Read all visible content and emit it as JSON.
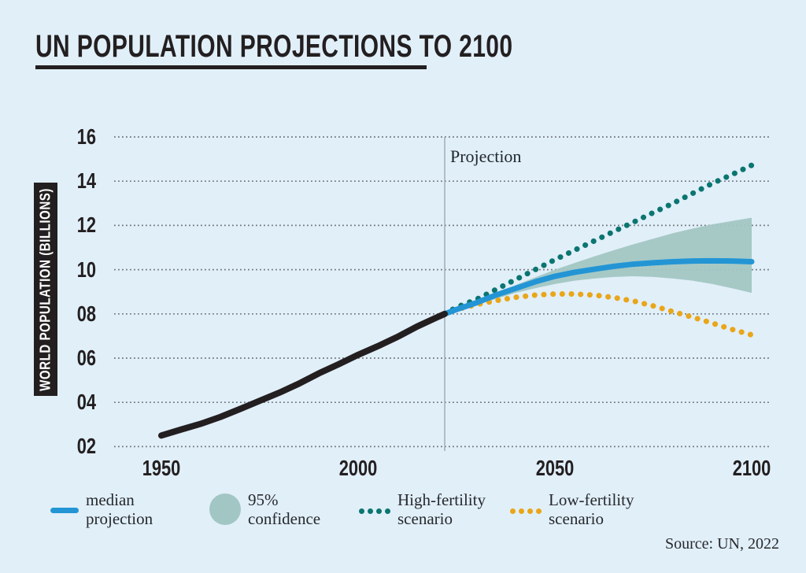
{
  "colors": {
    "background": "#e1eff9",
    "ink": "#231f20",
    "grid": "#54575c",
    "projection_line": "#9fadb6",
    "median_blue": "#2395d5",
    "confidence_band": "#a2c6c3",
    "high_fertility_teal": "#0b7570",
    "low_fertility_orange": "#e9a619"
  },
  "legend": {
    "items": [
      {
        "label": "median\nprojection",
        "swatch": "line",
        "color": "#2395d5"
      },
      {
        "label": "95%\nconfidence",
        "swatch": "circle",
        "color": "#a2c6c3"
      },
      {
        "label": "High-fertility\nscenario",
        "swatch": "dots",
        "color": "#0b7570"
      },
      {
        "label": "Low-fertility\nscenario",
        "swatch": "dots",
        "color": "#e9a619"
      }
    ]
  },
  "source": "Source: UN, 2022",
  "chart_data": {
    "type": "line",
    "title": "UN POPULATION PROJECTIONS TO 2100",
    "xlabel": "",
    "ylabel": "WORLD POPULATION (BILLIONS)",
    "xlim": [
      1950,
      2100
    ],
    "ylim": [
      2,
      16
    ],
    "grid": "horizontal-dotted",
    "legend_position": "bottom",
    "annotation": "Projection",
    "projection_start_year": 2022,
    "x_ticks": [
      "1950",
      "2000",
      "2050",
      "2100"
    ],
    "x_tick_years": [
      1950,
      2000,
      2050,
      2100
    ],
    "y_tick_labels": [
      "16",
      "14",
      "12",
      "10",
      "08",
      "06",
      "04",
      "02"
    ],
    "y_tick_values": [
      16,
      14,
      12,
      10,
      8,
      6,
      4,
      2
    ],
    "series": [
      {
        "name": "historical population",
        "style": "solid",
        "color": "#231f20",
        "width": 8,
        "years": [
          1950,
          1955,
          1960,
          1965,
          1970,
          1975,
          1980,
          1985,
          1990,
          1995,
          2000,
          2005,
          2010,
          2015,
          2020,
          2022
        ],
        "values": [
          2.5,
          2.77,
          3.03,
          3.34,
          3.7,
          4.07,
          4.44,
          4.85,
          5.31,
          5.72,
          6.15,
          6.54,
          6.96,
          7.43,
          7.84,
          8.0
        ]
      },
      {
        "name": "median projection",
        "style": "solid",
        "color": "#2395d5",
        "width": 7,
        "years": [
          2022,
          2025,
          2030,
          2035,
          2040,
          2045,
          2050,
          2055,
          2060,
          2065,
          2070,
          2075,
          2080,
          2085,
          2090,
          2095,
          2100
        ],
        "values": [
          8.0,
          8.2,
          8.5,
          8.85,
          9.15,
          9.45,
          9.7,
          9.88,
          10.02,
          10.15,
          10.25,
          10.31,
          10.36,
          10.39,
          10.4,
          10.39,
          10.36
        ]
      },
      {
        "name": "High-fertility scenario",
        "style": "dotted",
        "color": "#0b7570",
        "width": 7,
        "years": [
          2022,
          2025,
          2030,
          2035,
          2040,
          2045,
          2050,
          2055,
          2060,
          2065,
          2070,
          2075,
          2080,
          2085,
          2090,
          2095,
          2100
        ],
        "values": [
          8.0,
          8.3,
          8.65,
          9.1,
          9.55,
          10.0,
          10.45,
          10.88,
          11.3,
          11.73,
          12.15,
          12.58,
          13.0,
          13.45,
          13.9,
          14.3,
          14.72
        ]
      },
      {
        "name": "Low-fertility scenario",
        "style": "dotted",
        "color": "#e9a619",
        "width": 7,
        "years": [
          2022,
          2025,
          2030,
          2035,
          2040,
          2045,
          2050,
          2055,
          2060,
          2065,
          2070,
          2075,
          2080,
          2085,
          2090,
          2095,
          2100
        ],
        "values": [
          8.0,
          8.2,
          8.42,
          8.6,
          8.75,
          8.85,
          8.9,
          8.9,
          8.85,
          8.74,
          8.58,
          8.36,
          8.1,
          7.85,
          7.58,
          7.3,
          7.05
        ]
      }
    ],
    "band": {
      "name": "95% confidence",
      "color": "#a2c6c3",
      "years": [
        2022,
        2025,
        2030,
        2035,
        2040,
        2045,
        2050,
        2055,
        2060,
        2065,
        2070,
        2075,
        2080,
        2085,
        2090,
        2095,
        2100
      ],
      "upper": [
        8.0,
        8.25,
        8.6,
        8.95,
        9.3,
        9.65,
        10.0,
        10.3,
        10.6,
        10.88,
        11.15,
        11.4,
        11.65,
        11.86,
        12.05,
        12.2,
        12.35
      ],
      "lower": [
        8.0,
        8.15,
        8.4,
        8.68,
        8.95,
        9.16,
        9.35,
        9.5,
        9.6,
        9.67,
        9.7,
        9.67,
        9.6,
        9.5,
        9.35,
        9.16,
        8.95
      ]
    }
  }
}
